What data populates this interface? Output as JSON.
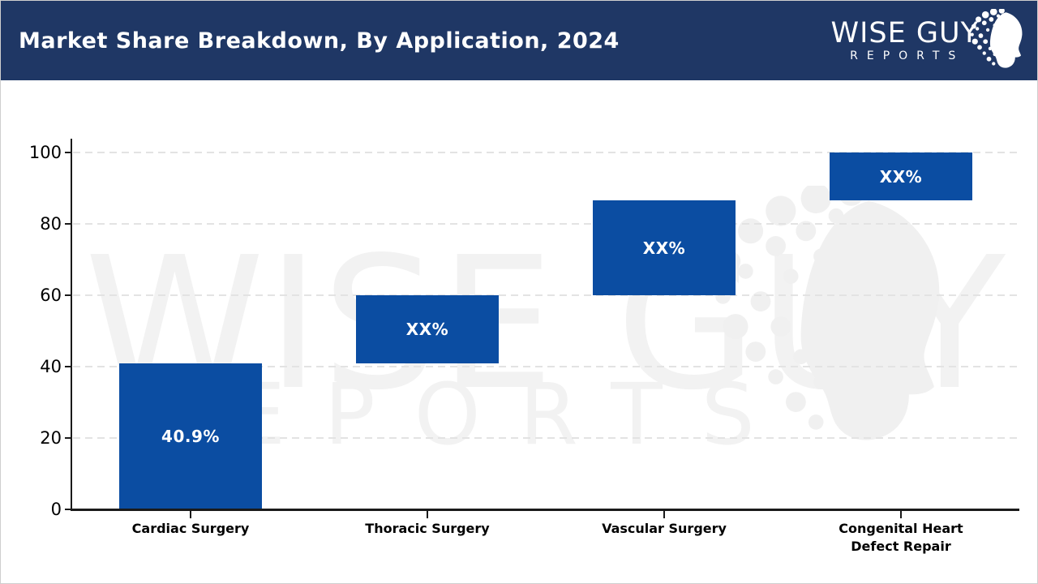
{
  "header": {
    "title": "Market Share Breakdown, By Application, 2024",
    "logo": {
      "wordmark": "WISE GUY",
      "sub": "REPORTS"
    }
  },
  "watermark": {
    "line1": "WISE GUY",
    "line2": "REPORTS"
  },
  "chart_data": {
    "type": "bar",
    "subtype": "waterfall",
    "title": "Market Share Breakdown, By Application, 2024",
    "categories": [
      "Cardiac Surgery",
      "Thoracic Surgery",
      "Vascular Surgery",
      "Congenital Heart\nDefect Repair"
    ],
    "segments": [
      {
        "category": "Cardiac Surgery",
        "start": 0,
        "end": 40.9,
        "label": "40.9%"
      },
      {
        "category": "Thoracic Surgery",
        "start": 40.9,
        "end": 59.9,
        "label": "XX%"
      },
      {
        "category": "Vascular Surgery",
        "start": 59.9,
        "end": 86.5,
        "label": "XX%"
      },
      {
        "category": "Congenital Heart Defect Repair",
        "start": 86.5,
        "end": 100,
        "label": "XX%"
      }
    ],
    "yticks": [
      0,
      20,
      40,
      60,
      80,
      100
    ],
    "ylim": [
      0,
      104
    ],
    "xlabel": "",
    "ylabel": "",
    "grid": {
      "horizontal": true,
      "style": "dashed",
      "color": "#e3e3e3"
    },
    "legend": null,
    "colors": {
      "bar": "#0b4da2",
      "bar_label": "#ffffff",
      "axis": "#1a1a1a",
      "header_bg": "#1f3765",
      "watermark": "#f2f2f2"
    }
  }
}
